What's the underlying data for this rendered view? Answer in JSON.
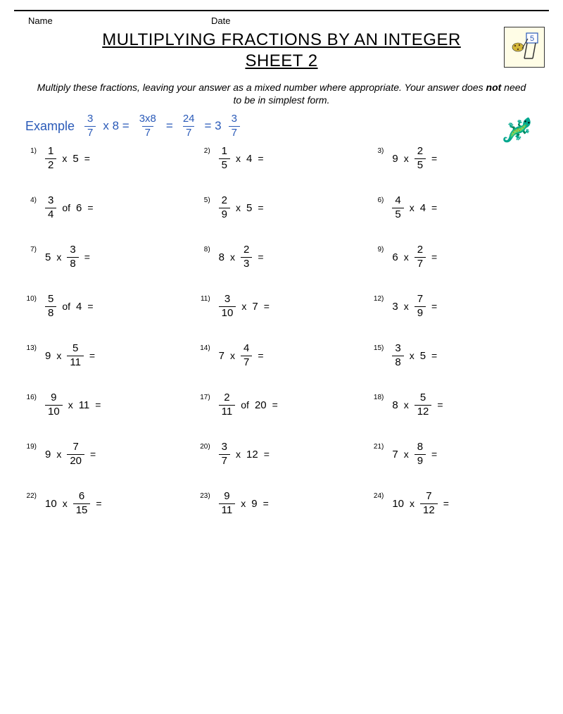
{
  "header": {
    "name_label": "Name",
    "date_label": "Date",
    "logo_text": "5"
  },
  "title": {
    "line1": "MULTIPLYING FRACTIONS BY AN INTEGER",
    "line2": "SHEET 2"
  },
  "instructions_pre": "Multiply these fractions, leaving your answer as a mixed number where appropriate. Your answer does ",
  "instructions_bold": "not",
  "instructions_post": " need to be in simplest form.",
  "example": {
    "label": "Example",
    "f1_num": "3",
    "f1_den": "7",
    "times": "x  8  =",
    "f2_num": "3x8",
    "f2_den": "7",
    "eq2": "=",
    "f3_num": "24",
    "f3_den": "7",
    "eq3": "=  3",
    "f4_num": "3",
    "f4_den": "7"
  },
  "colors": {
    "example_color": "#2a5ab8",
    "text_color": "#000000",
    "background": "#ffffff"
  },
  "problems": [
    {
      "n": "1)",
      "type": "frac_first",
      "num": "1",
      "den": "2",
      "op": "x",
      "int": "5"
    },
    {
      "n": "2)",
      "type": "frac_first",
      "num": "1",
      "den": "5",
      "op": "x",
      "int": "4"
    },
    {
      "n": "3)",
      "type": "int_first",
      "int": "9",
      "op": "x",
      "num": "2",
      "den": "5"
    },
    {
      "n": "4)",
      "type": "frac_first",
      "num": "3",
      "den": "4",
      "op": "of",
      "int": "6"
    },
    {
      "n": "5)",
      "type": "frac_first",
      "num": "2",
      "den": "9",
      "op": "x",
      "int": "5"
    },
    {
      "n": "6)",
      "type": "frac_first",
      "num": "4",
      "den": "5",
      "op": "x",
      "int": "4"
    },
    {
      "n": "7)",
      "type": "int_first",
      "int": "5",
      "op": "x",
      "num": "3",
      "den": "8"
    },
    {
      "n": "8)",
      "type": "int_first",
      "int": "8",
      "op": "x",
      "num": "2",
      "den": "3"
    },
    {
      "n": "9)",
      "type": "int_first",
      "int": "6",
      "op": "x",
      "num": "2",
      "den": "7"
    },
    {
      "n": "10)",
      "type": "frac_first",
      "num": "5",
      "den": "8",
      "op": "of",
      "int": "4"
    },
    {
      "n": "11)",
      "type": "frac_first",
      "num": "3",
      "den": "10",
      "op": "x",
      "int": "7"
    },
    {
      "n": "12)",
      "type": "int_first",
      "int": "3",
      "op": "x",
      "num": "7",
      "den": "9"
    },
    {
      "n": "13)",
      "type": "int_first",
      "int": "9",
      "op": "x",
      "num": "5",
      "den": "11"
    },
    {
      "n": "14)",
      "type": "int_first",
      "int": "7",
      "op": "x",
      "num": "4",
      "den": "7"
    },
    {
      "n": "15)",
      "type": "frac_first",
      "num": "3",
      "den": "8",
      "op": "x",
      "int": "5"
    },
    {
      "n": "16)",
      "type": "frac_first",
      "num": "9",
      "den": "10",
      "op": "x",
      "int": "11"
    },
    {
      "n": "17)",
      "type": "frac_first",
      "num": "2",
      "den": "11",
      "op": "of",
      "int": "20"
    },
    {
      "n": "18)",
      "type": "int_first",
      "int": "8",
      "op": "x",
      "num": "5",
      "den": "12"
    },
    {
      "n": "19)",
      "type": "int_first",
      "int": "9",
      "op": "x",
      "num": "7",
      "den": "20"
    },
    {
      "n": "20)",
      "type": "frac_first",
      "num": "3",
      "den": "7",
      "op": "x",
      "int": "12"
    },
    {
      "n": "21)",
      "type": "int_first",
      "int": "7",
      "op": "x",
      "num": "8",
      "den": "9"
    },
    {
      "n": "22)",
      "type": "int_first",
      "int": "10",
      "op": "x",
      "num": "6",
      "den": "15"
    },
    {
      "n": "23)",
      "type": "frac_first",
      "num": "9",
      "den": "11",
      "op": "x",
      "int": "9"
    },
    {
      "n": "24)",
      "type": "int_first",
      "int": "10",
      "op": "x",
      "num": "7",
      "den": "12"
    }
  ]
}
